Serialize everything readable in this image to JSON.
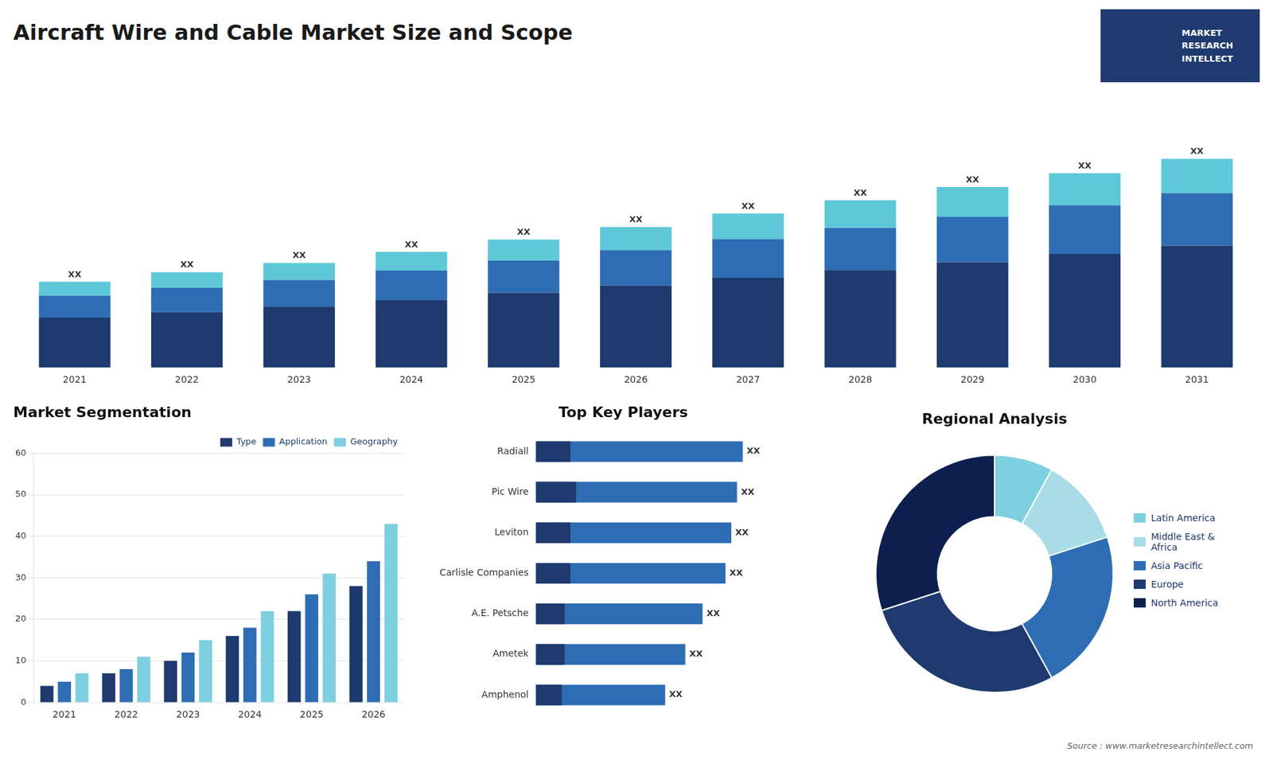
{
  "chart_data": [
    {
      "type": "bar",
      "title": "Aircraft Wire and Cable Market Size and Scope",
      "annotations": [
        "MARKET",
        "RESEARCH",
        "INTELLECT"
      ],
      "categories": [
        "2021",
        "2022",
        "2023",
        "2024",
        "2025",
        "2026",
        "2027",
        "2028",
        "2029",
        "2030",
        "2031"
      ],
      "stacked": true,
      "series": [
        {
          "color": "#1e3a6e",
          "values": [
            0.9,
            1.0,
            1.1,
            1.22,
            1.35,
            1.48,
            1.62,
            1.76,
            1.9,
            2.05,
            2.2
          ]
        },
        {
          "color": "#2e6db4",
          "values": [
            0.4,
            0.44,
            0.48,
            0.53,
            0.58,
            0.64,
            0.7,
            0.76,
            0.82,
            0.88,
            0.95
          ]
        },
        {
          "color": "#5ec8d8",
          "values": [
            0.25,
            0.28,
            0.31,
            0.34,
            0.38,
            0.42,
            0.46,
            0.5,
            0.54,
            0.58,
            0.62
          ],
          "value_labels": [
            "XX",
            "XX",
            "XX",
            "XX",
            "XX",
            "XX",
            "XX",
            "XX",
            "XX",
            "XX",
            "XX"
          ]
        }
      ],
      "ylim": [
        0,
        4.901
      ],
      "grid": false,
      "tick_labels": "x"
    },
    {
      "type": "bar",
      "title": "Market Segmentation",
      "categories": [
        "2021",
        "2022",
        "2023",
        "2024",
        "2025",
        "2026"
      ],
      "series": [
        {
          "name": "Type",
          "color": "#1e3a6e",
          "values": [
            4,
            7,
            10,
            16,
            22,
            28
          ]
        },
        {
          "name": "Application",
          "color": "#2e6db4",
          "values": [
            5,
            8,
            12,
            18,
            26,
            34
          ]
        },
        {
          "name": "Geography",
          "color": "#7ecfe0",
          "values": [
            7,
            11,
            15,
            22,
            31,
            43
          ]
        }
      ],
      "ylim": [
        0,
        60
      ],
      "yticks": [
        0,
        10,
        20,
        30,
        40,
        50,
        60
      ],
      "grid": true,
      "legend": "upper right"
    },
    {
      "type": "bar",
      "orientation": "horizontal",
      "title": "Top Key Players",
      "categories": [
        "Radiall",
        "Pic Wire",
        "Leviton",
        "Carlisle Companies",
        "A.E. Petsche",
        "Ametek",
        "Amphenol"
      ],
      "stacked": false,
      "series": [
        {
          "color": "#2e6db4",
          "values": [
            0.72,
            0.7,
            0.68,
            0.66,
            0.58,
            0.52,
            0.45
          ],
          "value_labels": [
            "XX",
            "XX",
            "XX",
            "XX",
            "XX",
            "XX",
            "XX"
          ]
        },
        {
          "color": "#1e3a6e",
          "values": [
            0.12,
            0.14,
            0.12,
            0.12,
            0.1,
            0.1,
            0.09
          ]
        }
      ],
      "xlim": [
        0,
        0.95
      ],
      "grid": false,
      "tick_labels": "y"
    },
    {
      "type": "doughnut",
      "title": "Regional Analysis",
      "categories": [
        "Latin America",
        "Middle East &\nAfrica",
        "Asia Pacific",
        "Europe",
        "North America"
      ],
      "values": [
        8,
        12,
        22,
        28,
        30
      ],
      "colors": [
        "#7ecfe0",
        "#a8dde8",
        "#2e6db4",
        "#1e3a6e",
        "#0d1f4f"
      ],
      "legend": "right",
      "annotations": [
        "Source : www.marketresearchintellect.com"
      ]
    }
  ]
}
